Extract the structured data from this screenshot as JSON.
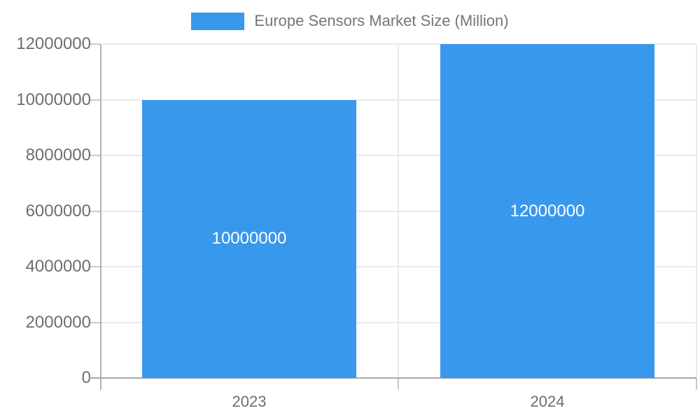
{
  "legend": {
    "label": "Europe Sensors Market Size (Million)"
  },
  "colors": {
    "bar": "#3898ec",
    "bar_label_text": "#ffffff",
    "axis_label_text": "#6e6e6e",
    "legend_text": "#757575",
    "gridline": "#e9e9e9",
    "axis_line": "#a8a8a8"
  },
  "chart_data": {
    "type": "bar",
    "title": "Europe Sensors Market Size (Million)",
    "categories": [
      "2023",
      "2024"
    ],
    "values": [
      10000000,
      12000000
    ],
    "bar_labels": [
      "10000000",
      "12000000"
    ],
    "series": [
      {
        "name": "Europe Sensors Market Size (Million)",
        "values": [
          10000000,
          12000000
        ]
      }
    ],
    "xlabel": "",
    "ylabel": "",
    "ylim": [
      0,
      12000000
    ],
    "y_tick_step": 2000000,
    "y_ticks": [
      "0",
      "2000000",
      "4000000",
      "6000000",
      "8000000",
      "10000000",
      "12000000"
    ],
    "grid": true,
    "legend_position": "top-center"
  }
}
